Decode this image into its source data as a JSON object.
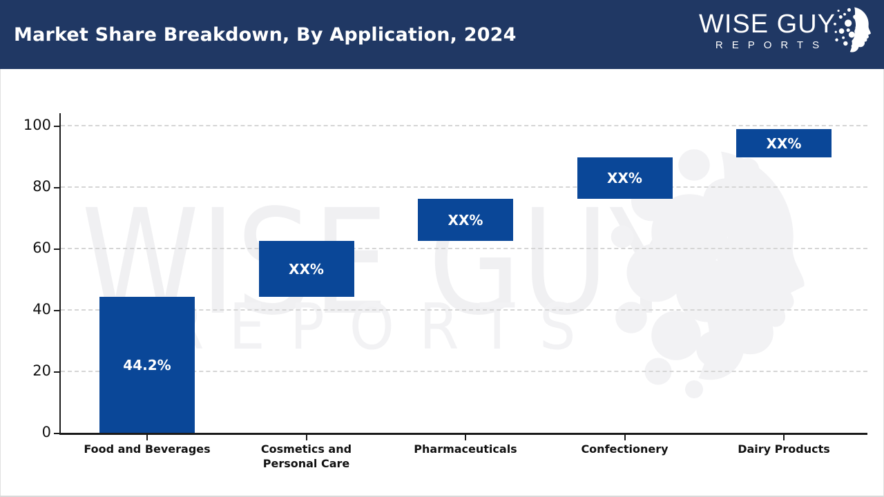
{
  "header": {
    "title": "Market Share Breakdown, By Application, 2024",
    "bg_color": "#203864",
    "logo": {
      "line1": "WISE GUY",
      "line2": "REPORTS"
    }
  },
  "watermark": {
    "line1": "WISE GUY",
    "line2": "REPORTS"
  },
  "chart_data": {
    "type": "bar",
    "subtype": "waterfall",
    "title": "Market Share Breakdown, By Application, 2024",
    "categories": [
      "Food and Beverages",
      "Cosmetics and\nPersonal Care",
      "Pharmaceuticals",
      "Confectionery",
      "Dairy Products"
    ],
    "series": [
      {
        "name": "Market Share %",
        "starts": [
          0,
          44.2,
          62.4,
          76.1,
          89.7
        ],
        "ends": [
          44.2,
          62.4,
          76.1,
          89.7,
          98.8
        ]
      }
    ],
    "bar_labels": [
      "44.2%",
      "XX%",
      "XX%",
      "XX%",
      "XX%"
    ],
    "xlabel": "",
    "ylabel": "",
    "ylim": [
      0,
      105
    ],
    "yticks": [
      0,
      20,
      40,
      60,
      80,
      100
    ],
    "grid": "horizontal-dashed",
    "legend": "none",
    "bar_color": "#0A4798",
    "label_color": "#ffffff",
    "grid_color": "#d5d5d5",
    "axis_color": "#1a1a1a"
  }
}
